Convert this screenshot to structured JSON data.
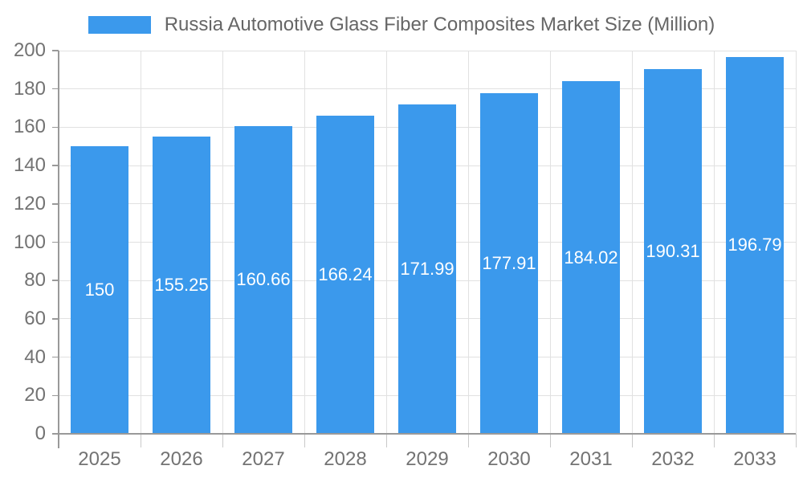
{
  "chart_data": {
    "type": "bar",
    "title": "",
    "legend": "Russia Automotive Glass Fiber Composites Market Size (Million)",
    "legend_position": "top-center",
    "categories": [
      "2025",
      "2026",
      "2027",
      "2028",
      "2029",
      "2030",
      "2031",
      "2032",
      "2033"
    ],
    "values": [
      150,
      155.25,
      160.66,
      166.24,
      171.99,
      177.91,
      184.02,
      190.31,
      196.79
    ],
    "value_labels": [
      "150",
      "155.25",
      "160.66",
      "166.24",
      "171.99",
      "177.91",
      "184.02",
      "190.31",
      "196.79"
    ],
    "xlabel": "",
    "ylabel": "",
    "ylim": [
      0,
      200
    ],
    "yticks": [
      0,
      20,
      40,
      60,
      80,
      100,
      120,
      140,
      160,
      180,
      200
    ],
    "grid": true,
    "label_position": "inside-center",
    "colors": {
      "bar": "#3B99EC",
      "axis": "#999999",
      "grid": "#E1E1E1",
      "x_tick": "#C9C9C9",
      "tick_label": "#737373",
      "legend_text": "#666666",
      "data_label": "#FFFFFF",
      "background": "#FFFFFF"
    }
  }
}
